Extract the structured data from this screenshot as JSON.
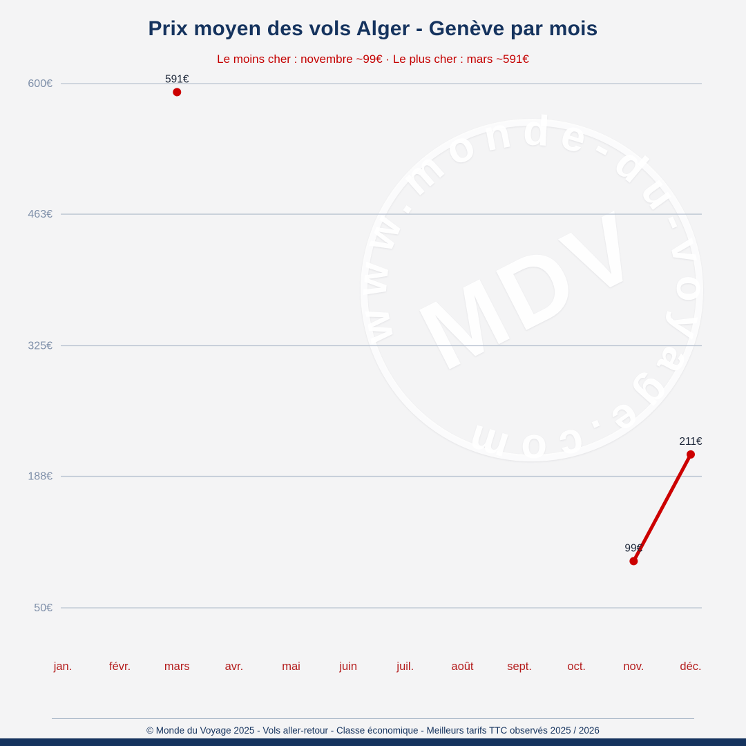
{
  "header": {
    "title": "Prix moyen des vols Alger - Genève par mois",
    "subtitle": "Le moins cher : novembre ~99€ · Le plus cher : mars ~591€"
  },
  "watermark": {
    "url": "www.monde-du-voyage.com",
    "initials": "MDV"
  },
  "footer": {
    "text": "© Monde du Voyage 2025 - Vols aller-retour - Classe économique - Meilleurs tarifs TTC observés 2025 / 2026"
  },
  "colors": {
    "title_navy": "#15335e",
    "subtitle_red": "#c40000",
    "grid": "#b9c3d1",
    "axis_label": "#7d8ea8",
    "month_red": "#b41c1c",
    "point": "#cc0000",
    "point_label": "#1c2638",
    "footer_bar": "#15335e"
  },
  "chart_data": {
    "type": "line",
    "title": "Prix moyen des vols Alger - Genève par mois",
    "categories": [
      "jan.",
      "févr.",
      "mars",
      "avr.",
      "mai",
      "juin",
      "juil.",
      "août",
      "sept.",
      "oct.",
      "nov.",
      "déc."
    ],
    "values": [
      null,
      null,
      591,
      null,
      null,
      null,
      null,
      null,
      null,
      null,
      99,
      211
    ],
    "unit": "€",
    "yticks": [
      600,
      463,
      325,
      188,
      50
    ],
    "ylim": [
      50,
      600
    ],
    "min_point": {
      "month": "novembre",
      "value": 99
    },
    "max_point": {
      "month": "mars",
      "value": 591
    },
    "grid": "horizontal",
    "legend": "none"
  }
}
